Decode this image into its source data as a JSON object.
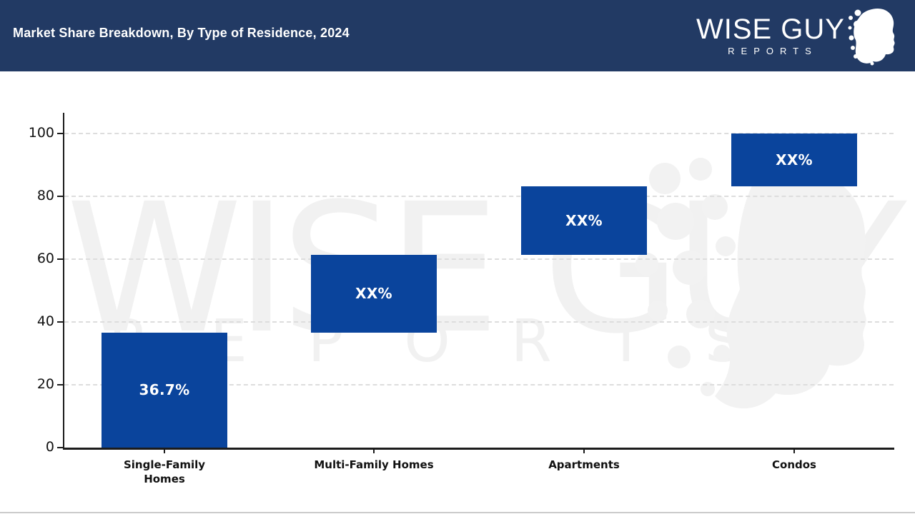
{
  "header": {
    "title": "Market Share Breakdown, By Type of Residence, 2024",
    "bg_color": "#223a64",
    "logo": {
      "line1": "WISE GUY",
      "line2": "REPORTS"
    }
  },
  "watermark": {
    "line1": "WISE GUY",
    "line2": "REPORTS"
  },
  "chart_data": {
    "type": "bar",
    "subtype": "waterfall-floating-bars",
    "title": "Market Share Breakdown, By Type of Residence, 2024",
    "categories": [
      "Single-Family\nHomes",
      "Multi-Family Homes",
      "Apartments",
      "Condos"
    ],
    "segments": [
      {
        "category": "Single-Family Homes",
        "start": 0,
        "end": 36.7,
        "label": "36.7%"
      },
      {
        "category": "Multi-Family Homes",
        "start": 36.7,
        "end": 61.3,
        "label": "XX%"
      },
      {
        "category": "Apartments",
        "start": 61.3,
        "end": 83.2,
        "label": "XX%"
      },
      {
        "category": "Condos",
        "start": 83.2,
        "end": 100,
        "label": "XX%"
      }
    ],
    "yticks": [
      0,
      20,
      40,
      60,
      80,
      100
    ],
    "ylim": [
      0,
      107
    ],
    "xlabel": "",
    "ylabel": "",
    "grid": true,
    "gridline_style": "dashed",
    "gridline_color": "#dddddd",
    "bar_color": "#0a449c",
    "bar_label_color": "#ffffff",
    "axis_color": "#1c1c1c"
  }
}
